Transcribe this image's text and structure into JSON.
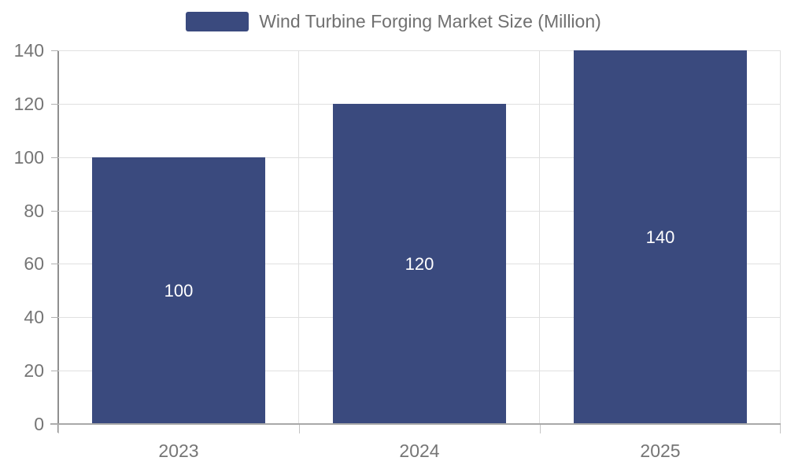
{
  "chart_data": {
    "type": "bar",
    "title": "Wind Turbine Forging Market Size (Million)",
    "categories": [
      "2023",
      "2024",
      "2025"
    ],
    "series": [
      {
        "name": "Wind Turbine Forging Market Size (Million)",
        "values": [
          100,
          120,
          140
        ]
      }
    ],
    "data_labels": [
      "100",
      "120",
      "140"
    ],
    "ylim": [
      0,
      140
    ],
    "yticks": [
      0,
      20,
      40,
      60,
      80,
      100,
      120,
      140
    ],
    "ytick_labels": [
      "0",
      "20",
      "40",
      "60",
      "80",
      "100",
      "120",
      "140"
    ],
    "xlabel": "",
    "ylabel": "",
    "grid": true,
    "legend_position": "top-center",
    "colors": {
      "bar": "#3a4a7e",
      "bar_value_label": "#ffffff",
      "legend_text": "#707070",
      "axis_tick_text": "#757575",
      "gridline": "#e0e0e0",
      "y_axis_line": "#8f8f8f",
      "x_axis_line": "#a9a9a9"
    }
  },
  "legend": {
    "label": "Wind Turbine Forging Market Size (Million)",
    "swatch_color": "#3a4a7e"
  }
}
